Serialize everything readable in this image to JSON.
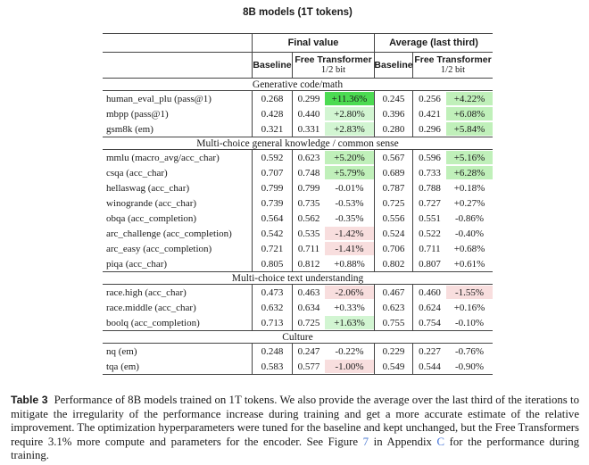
{
  "title": "8B models (1T tokens)",
  "colors": {
    "delta_strong_green": "#4cdb52",
    "delta_green": "#c0f0ba",
    "delta_light_green": "#d2f5d2",
    "delta_pink": "#f8dede",
    "figure_link_color": "#4d7bd2",
    "appendix_link_color": "#3e6fd8"
  },
  "table": {
    "group_headers": {
      "final": "Final value",
      "average": "Average (last third)"
    },
    "col_headers": {
      "baseline": "Baseline",
      "free_transformer": "Free Transformer",
      "half_bit": "1/2 bit"
    },
    "sections": [
      {
        "label": "Generative code/math",
        "rows": [
          {
            "label": "human_eval_plu (pass@1)",
            "final_baseline": "0.268",
            "final_ft": "0.299",
            "final_delta": "+11.36%",
            "final_delta_bg": "#4cdb52",
            "avg_baseline": "0.245",
            "avg_ft": "0.256",
            "avg_delta": "+4.22%",
            "avg_delta_bg": "#c0f0ba"
          },
          {
            "label": "mbpp (pass@1)",
            "final_baseline": "0.428",
            "final_ft": "0.440",
            "final_delta": "+2.80%",
            "final_delta_bg": "#d2f5d2",
            "avg_baseline": "0.396",
            "avg_ft": "0.421",
            "avg_delta": "+6.08%",
            "avg_delta_bg": "#c0f0ba"
          },
          {
            "label": "gsm8k (em)",
            "final_baseline": "0.321",
            "final_ft": "0.331",
            "final_delta": "+2.83%",
            "final_delta_bg": "#d2f5d2",
            "avg_baseline": "0.280",
            "avg_ft": "0.296",
            "avg_delta": "+5.84%",
            "avg_delta_bg": "#c0f0ba"
          }
        ]
      },
      {
        "label": "Multi-choice general knowledge / common sense",
        "rows": [
          {
            "label": "mmlu (macro_avg/acc_char)",
            "final_baseline": "0.592",
            "final_ft": "0.623",
            "final_delta": "+5.20%",
            "final_delta_bg": "#c0f0ba",
            "avg_baseline": "0.567",
            "avg_ft": "0.596",
            "avg_delta": "+5.16%",
            "avg_delta_bg": "#c0f0ba"
          },
          {
            "label": "csqa (acc_char)",
            "final_baseline": "0.707",
            "final_ft": "0.748",
            "final_delta": "+5.79%",
            "final_delta_bg": "#c0f0ba",
            "avg_baseline": "0.689",
            "avg_ft": "0.733",
            "avg_delta": "+6.28%",
            "avg_delta_bg": "#c0f0ba"
          },
          {
            "label": "hellaswag (acc_char)",
            "final_baseline": "0.799",
            "final_ft": "0.799",
            "final_delta": "-0.01%",
            "final_delta_bg": "",
            "avg_baseline": "0.787",
            "avg_ft": "0.788",
            "avg_delta": "+0.18%",
            "avg_delta_bg": ""
          },
          {
            "label": "winogrande (acc_char)",
            "final_baseline": "0.739",
            "final_ft": "0.735",
            "final_delta": "-0.53%",
            "final_delta_bg": "",
            "avg_baseline": "0.725",
            "avg_ft": "0.727",
            "avg_delta": "+0.27%",
            "avg_delta_bg": ""
          },
          {
            "label": "obqa (acc_completion)",
            "final_baseline": "0.564",
            "final_ft": "0.562",
            "final_delta": "-0.35%",
            "final_delta_bg": "",
            "avg_baseline": "0.556",
            "avg_ft": "0.551",
            "avg_delta": "-0.86%",
            "avg_delta_bg": ""
          },
          {
            "label": "arc_challenge (acc_completion)",
            "final_baseline": "0.542",
            "final_ft": "0.535",
            "final_delta": "-1.42%",
            "final_delta_bg": "#f8dede",
            "avg_baseline": "0.524",
            "avg_ft": "0.522",
            "avg_delta": "-0.40%",
            "avg_delta_bg": ""
          },
          {
            "label": "arc_easy (acc_completion)",
            "final_baseline": "0.721",
            "final_ft": "0.711",
            "final_delta": "-1.41%",
            "final_delta_bg": "#f8dede",
            "avg_baseline": "0.706",
            "avg_ft": "0.711",
            "avg_delta": "+0.68%",
            "avg_delta_bg": ""
          },
          {
            "label": "piqa (acc_char)",
            "final_baseline": "0.805",
            "final_ft": "0.812",
            "final_delta": "+0.88%",
            "final_delta_bg": "",
            "avg_baseline": "0.802",
            "avg_ft": "0.807",
            "avg_delta": "+0.61%",
            "avg_delta_bg": ""
          }
        ]
      },
      {
        "label": "Multi-choice text understanding",
        "rows": [
          {
            "label": "race.high (acc_char)",
            "final_baseline": "0.473",
            "final_ft": "0.463",
            "final_delta": "-2.06%",
            "final_delta_bg": "#f8dede",
            "avg_baseline": "0.467",
            "avg_ft": "0.460",
            "avg_delta": "-1.55%",
            "avg_delta_bg": "#f8dede"
          },
          {
            "label": "race.middle (acc_char)",
            "final_baseline": "0.632",
            "final_ft": "0.634",
            "final_delta": "+0.33%",
            "final_delta_bg": "",
            "avg_baseline": "0.623",
            "avg_ft": "0.624",
            "avg_delta": "+0.16%",
            "avg_delta_bg": ""
          },
          {
            "label": "boolq (acc_completion)",
            "final_baseline": "0.713",
            "final_ft": "0.725",
            "final_delta": "+1.63%",
            "final_delta_bg": "#d2f5d2",
            "avg_baseline": "0.755",
            "avg_ft": "0.754",
            "avg_delta": "-0.10%",
            "avg_delta_bg": ""
          }
        ]
      },
      {
        "label": "Culture",
        "rows": [
          {
            "label": "nq (em)",
            "final_baseline": "0.248",
            "final_ft": "0.247",
            "final_delta": "-0.22%",
            "final_delta_bg": "",
            "avg_baseline": "0.229",
            "avg_ft": "0.227",
            "avg_delta": "-0.76%",
            "avg_delta_bg": ""
          },
          {
            "label": "tqa (em)",
            "final_baseline": "0.583",
            "final_ft": "0.577",
            "final_delta": "-1.00%",
            "final_delta_bg": "#f8dede",
            "avg_baseline": "0.549",
            "avg_ft": "0.544",
            "avg_delta": "-0.90%",
            "avg_delta_bg": ""
          }
        ]
      }
    ]
  },
  "caption": {
    "label": "Table 3",
    "body_1": "Performance of 8B models trained on 1T tokens. We also provide the average over the last third of the iterations to mitigate the irregularity of the performance increase during training and get a more accurate estimate of the relative improvement. The optimization hyperparameters were tuned for the baseline and kept unchanged, but the Free Transformers require 3.1% more compute and parameters for the encoder. See Figure ",
    "figure_ref": "7",
    "body_2": " in Appendix ",
    "appendix_ref": "C",
    "body_3": " for the performance during training."
  }
}
